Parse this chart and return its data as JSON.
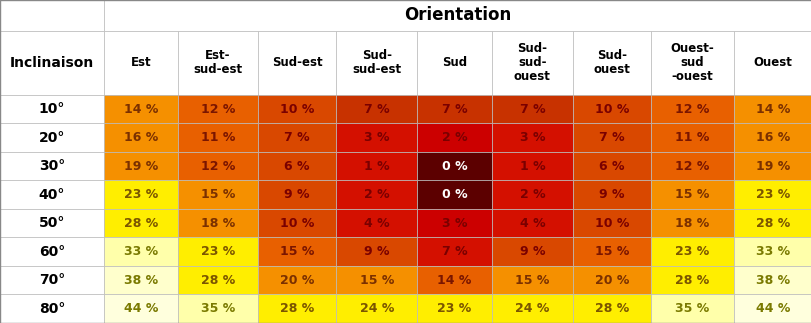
{
  "title": "Orientation",
  "row_header": "Inclinaison",
  "col_headers": [
    "Est",
    "Est-\nsud-est",
    "Sud-est",
    "Sud-\nsud-est",
    "Sud",
    "Sud-\nsud-\nouest",
    "Sud-\nouest",
    "Ouest-\nsud\n-ouest",
    "Ouest"
  ],
  "row_labels": [
    "10°",
    "20°",
    "30°",
    "40°",
    "50°",
    "60°",
    "70°",
    "80°"
  ],
  "values": [
    [
      "14 %",
      "12 %",
      "10 %",
      "7 %",
      "7 %",
      "7 %",
      "10 %",
      "12 %",
      "14 %"
    ],
    [
      "16 %",
      "11 %",
      "7 %",
      "3 %",
      "2 %",
      "3 %",
      "7 %",
      "11 %",
      "16 %"
    ],
    [
      "19 %",
      "12 %",
      "6 %",
      "1 %",
      "0 %",
      "1 %",
      "6 %",
      "12 %",
      "19 %"
    ],
    [
      "23 %",
      "15 %",
      "9 %",
      "2 %",
      "0 %",
      "2 %",
      "9 %",
      "15 %",
      "23 %"
    ],
    [
      "28 %",
      "18 %",
      "10 %",
      "4 %",
      "3 %",
      "4 %",
      "10 %",
      "18 %",
      "28 %"
    ],
    [
      "33 %",
      "23 %",
      "15 %",
      "9 %",
      "7 %",
      "9 %",
      "15 %",
      "23 %",
      "33 %"
    ],
    [
      "38 %",
      "28 %",
      "20 %",
      "15 %",
      "14 %",
      "15 %",
      "20 %",
      "28 %",
      "38 %"
    ],
    [
      "44 %",
      "35 %",
      "28 %",
      "24 %",
      "23 %",
      "24 %",
      "28 %",
      "35 %",
      "44 %"
    ]
  ],
  "cell_colors": [
    [
      "#F59000",
      "#E86000",
      "#D94800",
      "#C83200",
      "#C83200",
      "#C83200",
      "#D94800",
      "#E86000",
      "#F59000"
    ],
    [
      "#F59000",
      "#E86000",
      "#D94800",
      "#D41000",
      "#CC0000",
      "#D41000",
      "#D94800",
      "#E86000",
      "#F59000"
    ],
    [
      "#F59000",
      "#E86000",
      "#D94800",
      "#D41000",
      "#5C0000",
      "#D41000",
      "#D94800",
      "#E86000",
      "#F59000"
    ],
    [
      "#FFEE00",
      "#F59000",
      "#D94800",
      "#D41000",
      "#5C0000",
      "#D41000",
      "#D94800",
      "#F59000",
      "#FFEE00"
    ],
    [
      "#FFEE00",
      "#F59000",
      "#D94800",
      "#D41000",
      "#CC0000",
      "#D41000",
      "#D94800",
      "#F59000",
      "#FFEE00"
    ],
    [
      "#FFFFAA",
      "#FFEE00",
      "#E86000",
      "#D94800",
      "#D41000",
      "#D94800",
      "#E86000",
      "#FFEE00",
      "#FFFFAA"
    ],
    [
      "#FFFFCC",
      "#FFEE00",
      "#F59000",
      "#F59000",
      "#E86000",
      "#F59000",
      "#F59000",
      "#FFEE00",
      "#FFFFCC"
    ],
    [
      "#FFFFDD",
      "#FFFFAA",
      "#FFEE00",
      "#FFEE00",
      "#FFEE00",
      "#FFEE00",
      "#FFEE00",
      "#FFFFAA",
      "#FFFFDD"
    ]
  ],
  "text_colors": [
    [
      "#7A3000",
      "#7A1500",
      "#7A0000",
      "#7A0000",
      "#7A0000",
      "#7A0000",
      "#7A0000",
      "#7A1500",
      "#7A3000"
    ],
    [
      "#7A3000",
      "#7A1500",
      "#7A0000",
      "#7A0000",
      "#7A0000",
      "#7A0000",
      "#7A0000",
      "#7A1500",
      "#7A3000"
    ],
    [
      "#7A3000",
      "#7A1500",
      "#7A0000",
      "#7A0000",
      "#FFFFFF",
      "#7A0000",
      "#7A0000",
      "#7A1500",
      "#7A3000"
    ],
    [
      "#7A5500",
      "#7A3000",
      "#7A0000",
      "#7A0000",
      "#FFFFFF",
      "#7A0000",
      "#7A0000",
      "#7A3000",
      "#7A5500"
    ],
    [
      "#7A5500",
      "#7A3000",
      "#7A0000",
      "#7A0000",
      "#7A0000",
      "#7A0000",
      "#7A0000",
      "#7A3000",
      "#7A5500"
    ],
    [
      "#7A7A00",
      "#7A5500",
      "#7A1500",
      "#7A0000",
      "#7A0000",
      "#7A0000",
      "#7A1500",
      "#7A5500",
      "#7A7A00"
    ],
    [
      "#7A7A00",
      "#7A5500",
      "#7A3000",
      "#7A3000",
      "#7A1500",
      "#7A3000",
      "#7A3000",
      "#7A5500",
      "#7A7A00"
    ],
    [
      "#7A7A00",
      "#7A7A00",
      "#7A5500",
      "#7A5500",
      "#7A5500",
      "#7A5500",
      "#7A5500",
      "#7A7A00",
      "#7A7A00"
    ]
  ],
  "header_bg": "#FFFFFF",
  "border_color": "#BBBBBB",
  "header_text_color": "#000000",
  "title_fontsize": 12,
  "header_fontsize": 8.5,
  "cell_fontsize": 9,
  "row_label_fontsize": 10
}
